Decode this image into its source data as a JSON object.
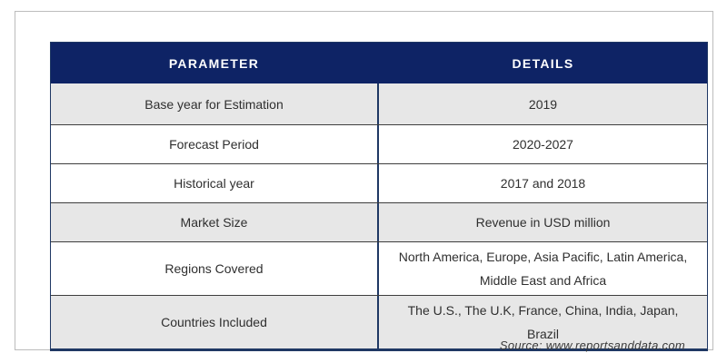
{
  "chart_data": {
    "type": "table",
    "title": "",
    "columns": [
      "PARAMETER",
      "DETAILS"
    ],
    "rows": [
      [
        "Base year for Estimation",
        "2019"
      ],
      [
        "Forecast Period",
        "2020-2027"
      ],
      [
        "Historical year",
        "2017 and 2018"
      ],
      [
        "Market Size",
        "Revenue in USD million"
      ],
      [
        "Regions Covered",
        "North America, Europe, Asia Pacific, Latin America, Middle East and Africa"
      ],
      [
        "Countries Included",
        "The U.S., The  U.K, France, China, India, Japan, Brazil"
      ]
    ],
    "shaded_row_indices": [
      0,
      3,
      5
    ]
  },
  "footer": {
    "source": "Source: www.reportsanddata.com"
  },
  "colors": {
    "header_bg": "#0e2365",
    "header_text": "#ffffff",
    "shaded_row_bg": "#e7e7e7",
    "table_border": "#1f3864",
    "row_divider": "#3e3e3e",
    "frame_border": "#bcbcbc",
    "cell_text": "#2f2f2f"
  }
}
